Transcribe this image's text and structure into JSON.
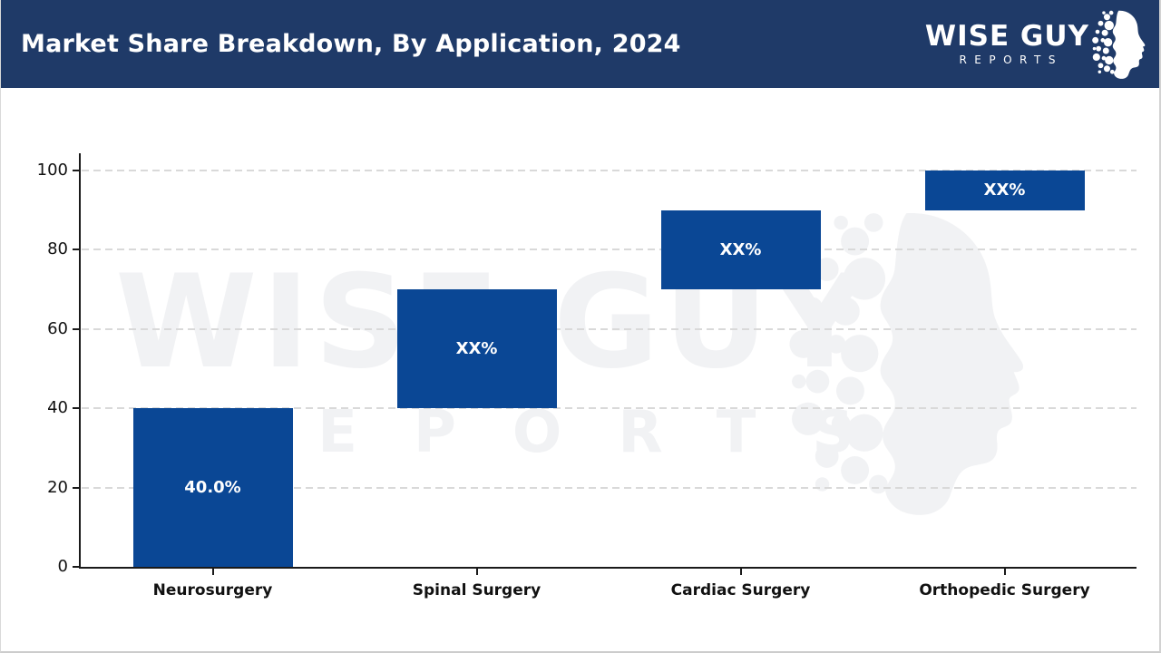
{
  "header": {
    "title": "Market Share Breakdown, By Application, 2024"
  },
  "brand": {
    "name": "WISE GUY",
    "subtitle": "REPORTS"
  },
  "watermark": {
    "name": "WISE GUY",
    "subtitle": "REPORTS"
  },
  "colors": {
    "header_bg": "#1f3a68",
    "bar": "#0a4795",
    "gridline": "#d9d9d9",
    "axis": "#1a1a1a",
    "bar_label": "#ffffff",
    "watermark": "#f1f2f4"
  },
  "chart_data": {
    "type": "bar",
    "subtype": "waterfall-floating-bars",
    "title": "Market Share Breakdown, By Application, 2024",
    "categories": [
      "Neurosurgery",
      "Spinal Surgery",
      "Cardiac Surgery",
      "Orthopedic Surgery"
    ],
    "segments": [
      {
        "category": "Neurosurgery",
        "start": 0,
        "end": 40,
        "label": "40.0%"
      },
      {
        "category": "Spinal Surgery",
        "start": 40,
        "end": 70,
        "label": "XX%"
      },
      {
        "category": "Cardiac Surgery",
        "start": 70,
        "end": 90,
        "label": "XX%"
      },
      {
        "category": "Orthopedic Surgery",
        "start": 90,
        "end": 100,
        "label": "XX%"
      }
    ],
    "ylim": [
      0,
      100
    ],
    "yticks": [
      0,
      20,
      40,
      60,
      80,
      100
    ],
    "grid": true,
    "grid_style": "dashed",
    "legend": false,
    "bar_color": "#0a4795"
  }
}
